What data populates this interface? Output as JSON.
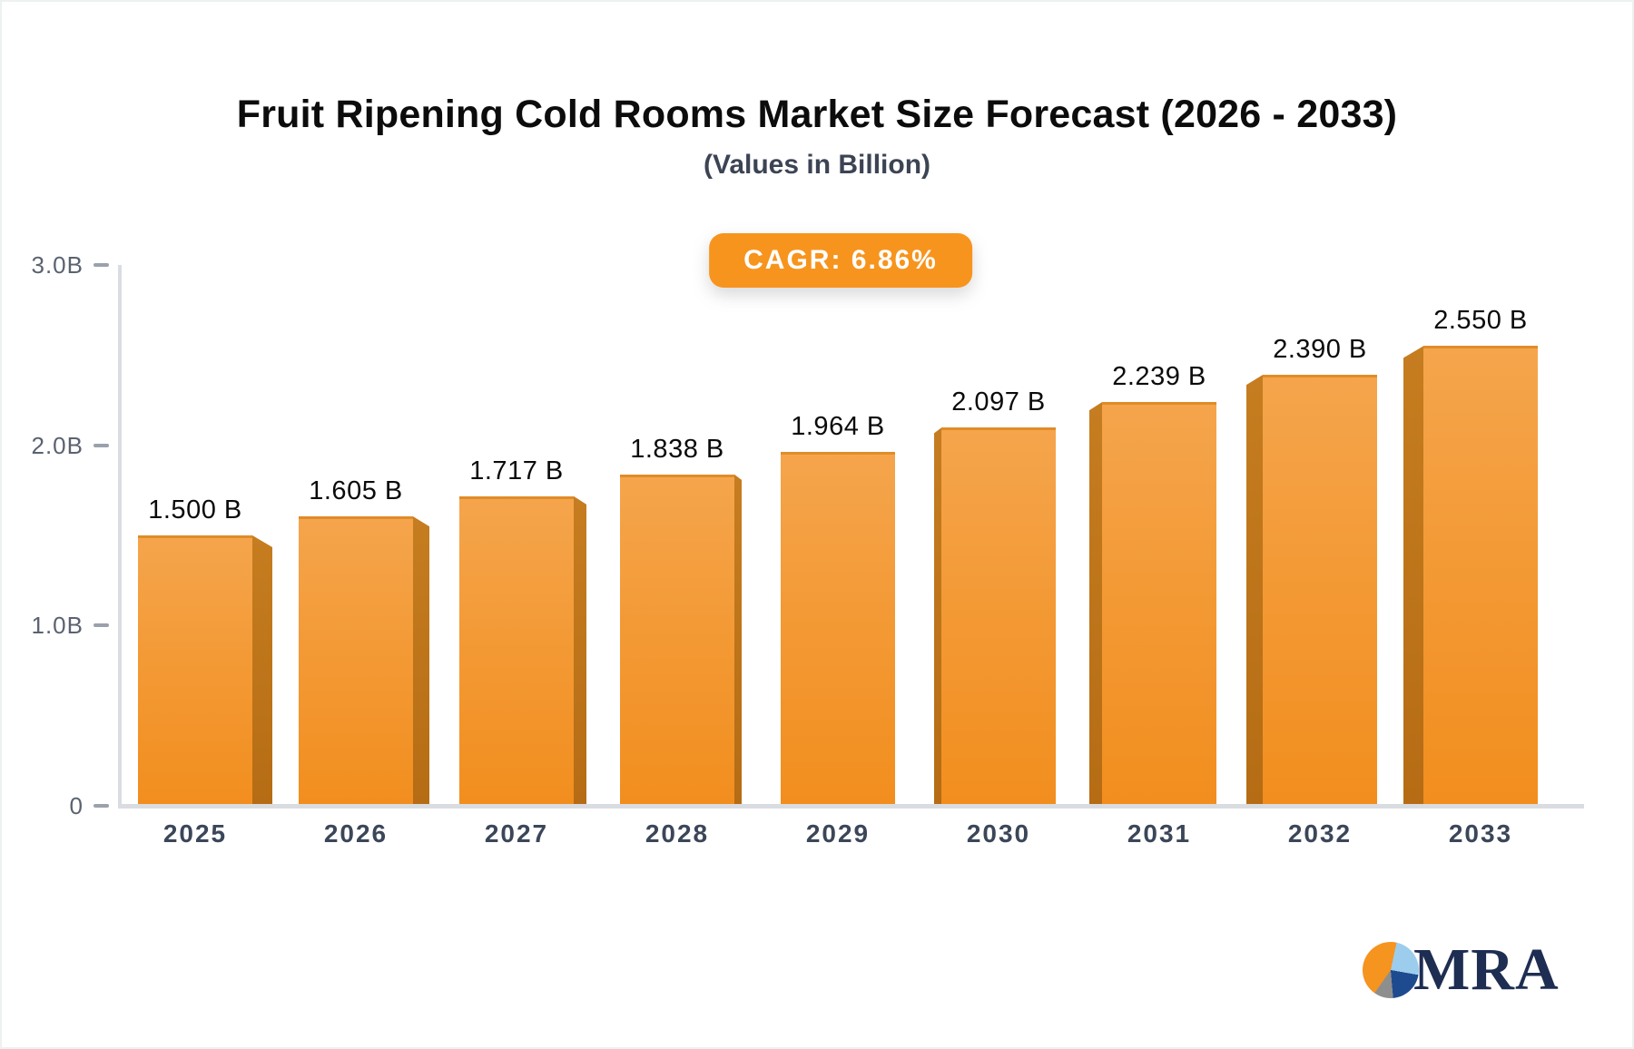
{
  "page": {
    "title": "Fruit Ripening Cold Rooms Market Size Forecast (2026 - 2033)",
    "subtitle": "(Values in Billion)",
    "cagr_badge": "CAGR: 6.86%"
  },
  "chart_data": {
    "type": "bar",
    "title": "Fruit Ripening Cold Rooms Market Size Forecast (2026 - 2033)",
    "subtitle": "(Values in Billion)",
    "cagr_annotation": "CAGR: 6.86%",
    "categories": [
      "2025",
      "2026",
      "2027",
      "2028",
      "2029",
      "2030",
      "2031",
      "2032",
      "2033"
    ],
    "values": [
      1.5,
      1.605,
      1.717,
      1.838,
      1.964,
      2.097,
      2.239,
      2.39,
      2.55
    ],
    "bar_labels": [
      "1.500 B",
      "1.605 B",
      "1.717 B",
      "1.838 B",
      "1.964 B",
      "2.097 B",
      "2.239 B",
      "2.390 B",
      "2.550 B"
    ],
    "xlabel": "",
    "ylabel": "",
    "ylim": [
      0,
      3
    ],
    "yticks": [
      {
        "v": 0,
        "label": "0"
      },
      {
        "v": 1,
        "label": "1.0B"
      },
      {
        "v": 2,
        "label": "2.0B"
      },
      {
        "v": 3,
        "label": "3.0B"
      }
    ],
    "grid": false,
    "legend": false,
    "bar_style": "3d-extruded, perspective toward center"
  },
  "colors": {
    "bar_face_top": "#F5A54D",
    "bar_face_mid": "#F39A36",
    "bar_face_bottom": "#F28E1E",
    "bar_face_edge": "#E08C28",
    "bar_side_top": "#C67D20",
    "bar_side_bottom": "#B56C14",
    "badge_bg": "#F7941E",
    "axis_line": "#D9DCE0",
    "tick": "#9AA1AB",
    "ytick_label": "#5A6270",
    "xtick_label": "#3B4659",
    "value_label": "#0B0B0B",
    "title": "#0C0C0C",
    "subtitle": "#3C4454"
  },
  "logo": {
    "text": "MRA",
    "text_color": "#1E2D52",
    "pie_colors": {
      "orange": "#F5941F",
      "light_blue": "#9DCDEC",
      "navy": "#1E4B8F",
      "gray": "#8E8E8E"
    }
  }
}
